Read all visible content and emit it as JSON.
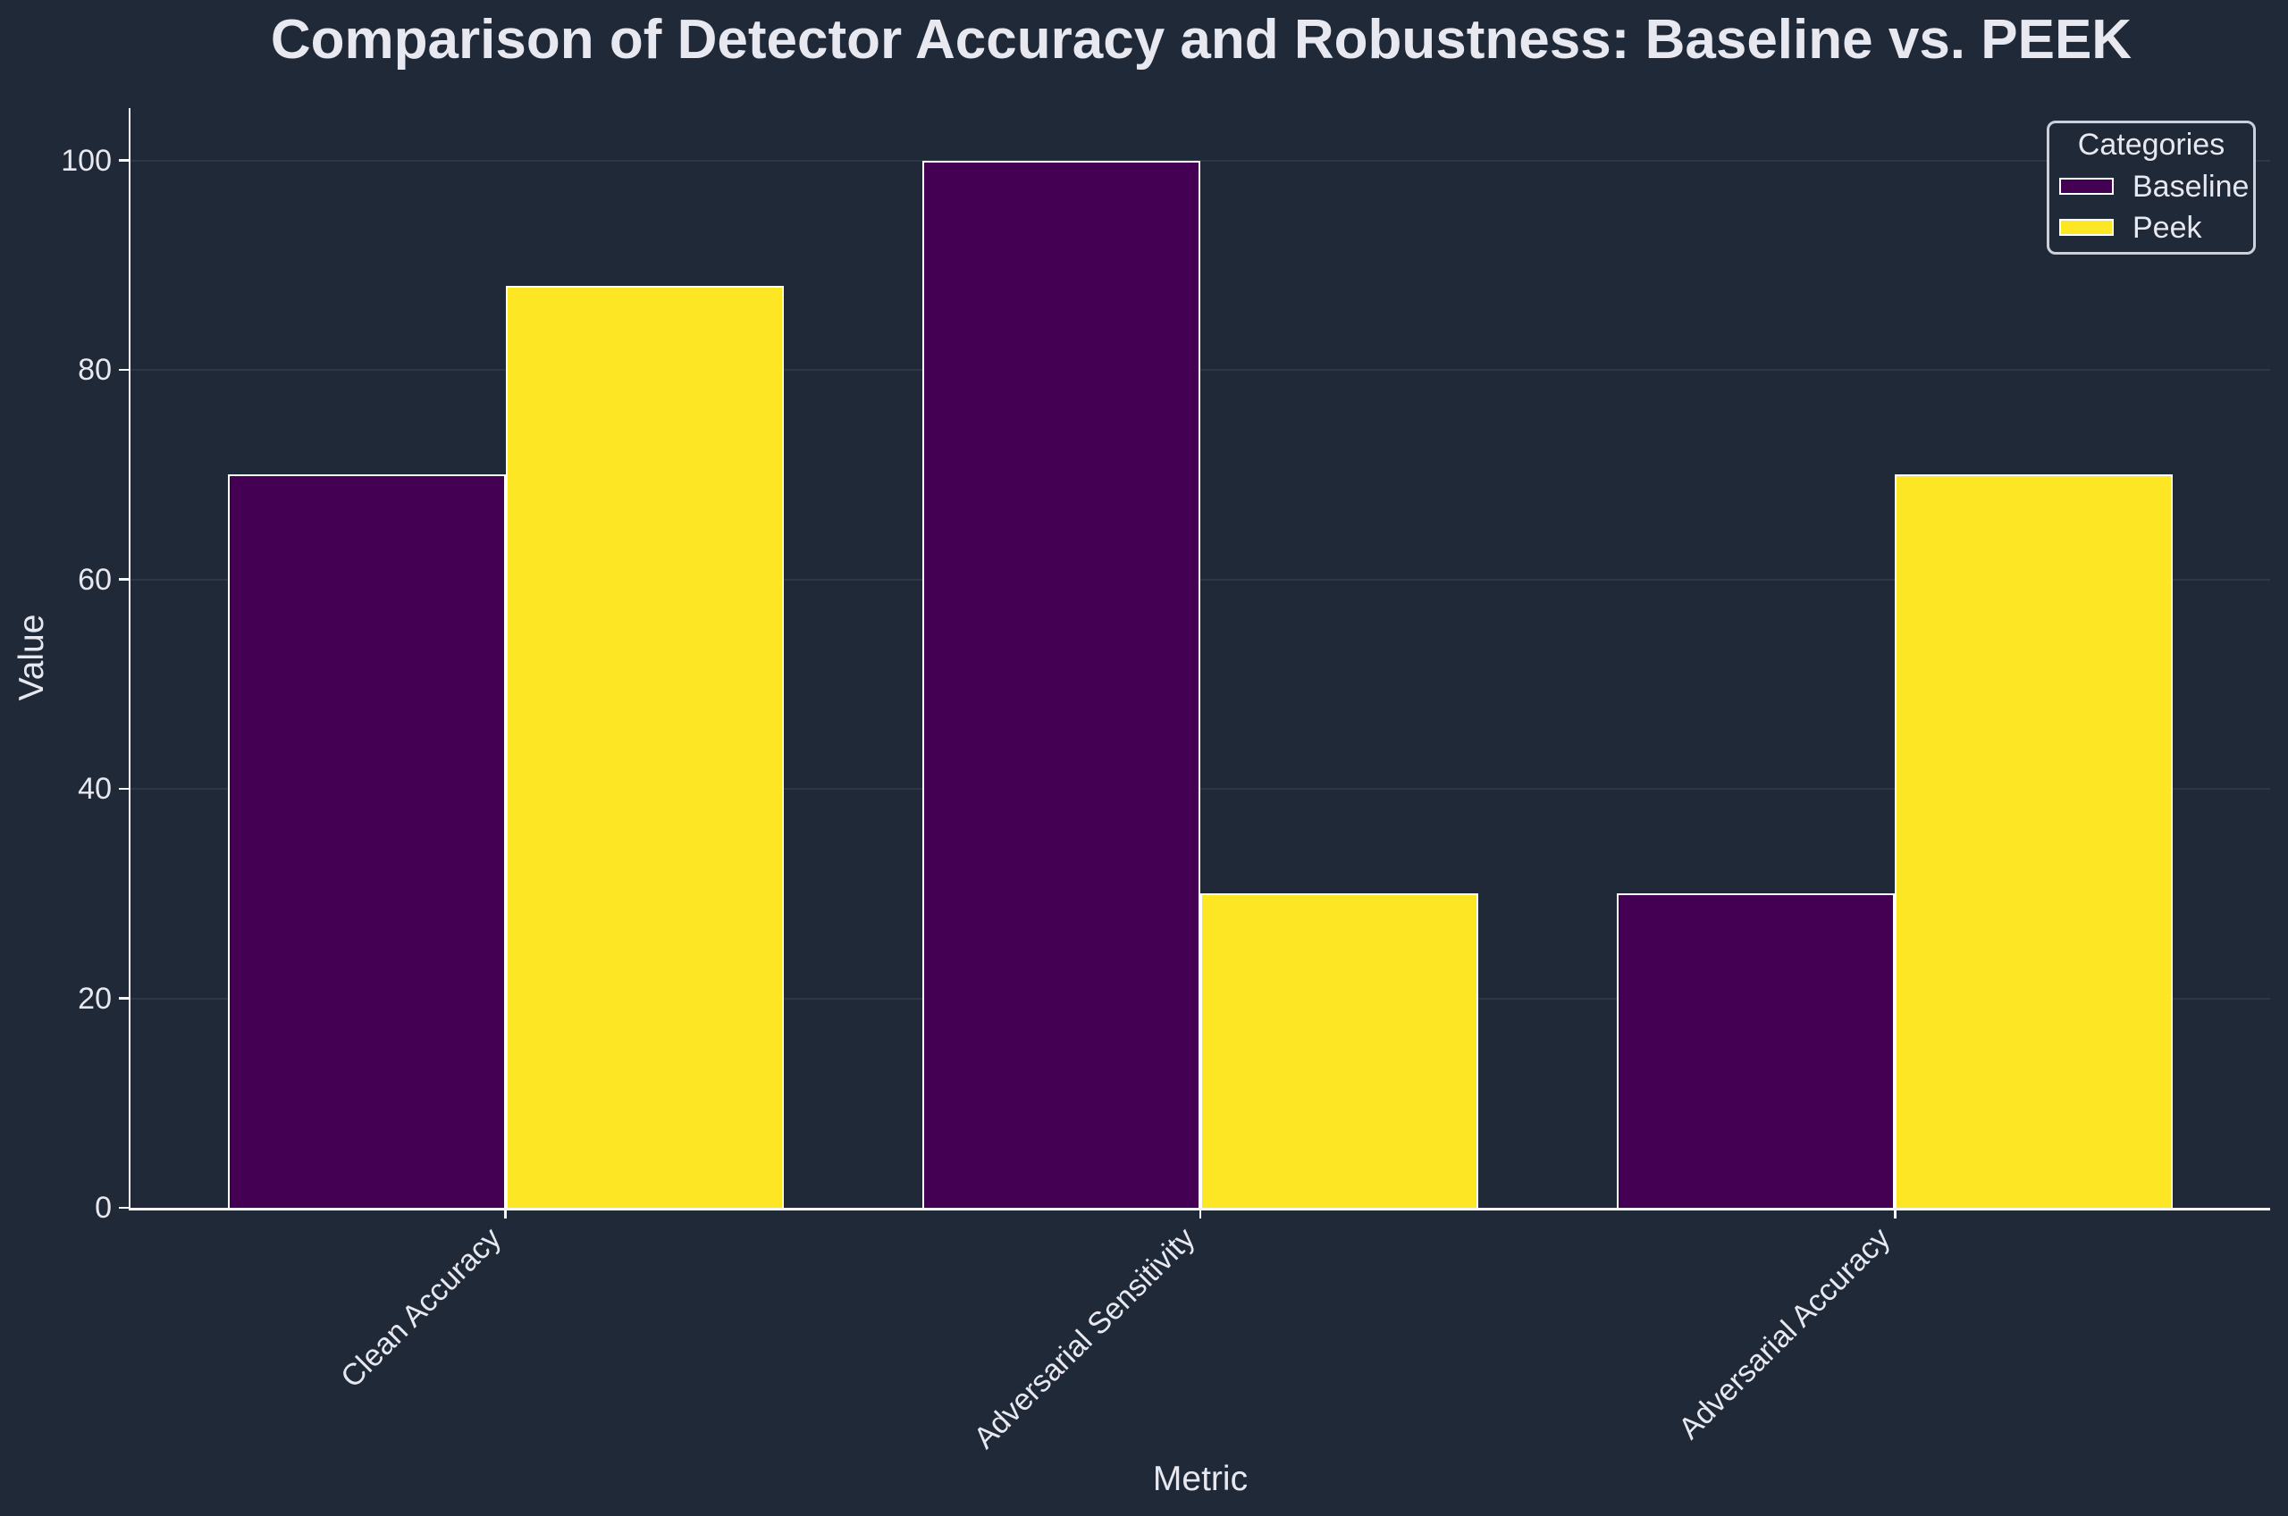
{
  "title": "Comparison of Detector Accuracy and Robustness: Baseline vs. PEEK",
  "chart_data": {
    "type": "bar",
    "title": "Comparison of Detector Accuracy and Robustness: Baseline vs. PEEK",
    "xlabel": "Metric",
    "ylabel": "Value",
    "categories": [
      "Clean Accuracy",
      "Adversarial Sensitivity",
      "Adversarial Accuracy"
    ],
    "series": [
      {
        "name": "Baseline",
        "color": "#440154",
        "values": [
          70,
          100,
          30
        ]
      },
      {
        "name": "Peek",
        "color": "#fde725",
        "values": [
          88,
          30,
          70
        ]
      }
    ],
    "ylim": [
      0,
      105
    ],
    "yticks": [
      0,
      20,
      40,
      60,
      80,
      100
    ],
    "grid": "horizontal",
    "legend": {
      "title": "Categories",
      "position": "upper right",
      "entries": [
        "Baseline",
        "Peek"
      ]
    }
  },
  "theme": {
    "background": "#1f2937",
    "text_color": "#e8e8f0",
    "spine_color": "#f5f6fa",
    "bar_edge_color": "#ffffff",
    "grid_color": "rgba(235,238,248,0.07)",
    "legend_border_color": "#ccd0da",
    "bar_colors": {
      "baseline": "#440154",
      "peek": "#fde725"
    }
  }
}
